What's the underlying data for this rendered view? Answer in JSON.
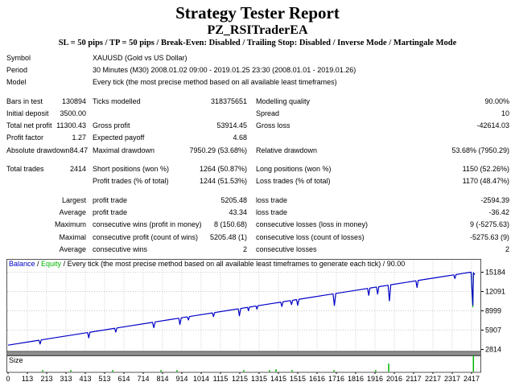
{
  "header": {
    "title": "Strategy Tester Report",
    "ea_name": "PZ_RSITraderEA",
    "settings": "SL = 50 pips / TP = 50 pips / Break-Even: Disabled / Trailing Stop: Disabled / Inverse Mode / Martingale Mode"
  },
  "report": {
    "rows": [
      {
        "cells": [
          "Symbol",
          "",
          "XAUUSD (Gold vs US Dollar)",
          "",
          "",
          ""
        ],
        "wide": true
      },
      {
        "cells": [
          "Period",
          "",
          "30 Minutes (M30) 2008.01.02 09:00 - 2019.01.25 23:30 (2008.01.01 - 2019.01.26)",
          "",
          "",
          ""
        ],
        "wide": true
      },
      {
        "cells": [
          "Model",
          "",
          "Every tick (the most precise method based on all available least timeframes)",
          "",
          "",
          ""
        ],
        "wide": true
      },
      {
        "cells": [
          "Bars in test",
          "130894",
          "Ticks modelled",
          "318375651",
          "Modelling quality",
          "90.00%"
        ],
        "gap": true
      },
      {
        "cells": [
          "Initial deposit",
          "3500.00",
          "",
          "",
          "Spread",
          "10"
        ]
      },
      {
        "cells": [
          "Total net profit",
          "11300.43",
          "Gross profit",
          "53914.45",
          "Gross loss",
          "-42614.03"
        ]
      },
      {
        "cells": [
          "Profit factor",
          "1.27",
          "Expected payoff",
          "4.68",
          "",
          ""
        ]
      },
      {
        "cells": [
          "Absolute drawdown",
          "84.47",
          "Maximal drawdown",
          "7950.29 (53.68%)",
          "Relative drawdown",
          "53.68% (7950.29)"
        ]
      },
      {
        "cells": [
          "Total trades",
          "2414",
          "Short positions (won %)",
          "1264 (50.87%)",
          "Long positions (won %)",
          "1150 (52.26%)"
        ],
        "gap": true
      },
      {
        "cells": [
          "",
          "",
          "Profit trades (% of total)",
          "1244 (51.53%)",
          "Loss trades (% of total)",
          "1170 (48.47%)"
        ]
      },
      {
        "cells": [
          "",
          "Largest",
          "profit trade",
          "5205.48",
          "loss trade",
          "-2594.39"
        ],
        "gap": true
      },
      {
        "cells": [
          "",
          "Average",
          "profit trade",
          "43.34",
          "loss trade",
          "-36.42"
        ]
      },
      {
        "cells": [
          "",
          "Maximum",
          "consecutive wins (profit in money)",
          "8 (150.68)",
          "consecutive losses (loss in money)",
          "9 (-5275.63)"
        ]
      },
      {
        "cells": [
          "",
          "Maximal",
          "consecutive profit (count of wins)",
          "5205.48 (1)",
          "consecutive loss (count of losses)",
          "-5275.63 (9)"
        ]
      },
      {
        "cells": [
          "",
          "Average",
          "consecutive wins",
          "2",
          "consecutive losses",
          "2"
        ]
      }
    ]
  },
  "chart_data": {
    "type": "line",
    "legend": {
      "balance": "Balance",
      "equity": "Equity",
      "separator": " / ",
      "rest": "Every tick (the most precise method based on all available least timeframes to generate each tick) / 90.00"
    },
    "size_label": "Size",
    "y_ticks": [
      "15184",
      "12091",
      "8999",
      "5907",
      "2814"
    ],
    "x_ticks": [
      "0",
      "113",
      "213",
      "313",
      "413",
      "513",
      "614",
      "714",
      "814",
      "914",
      "1014",
      "1115",
      "1215",
      "1315",
      "1415",
      "1515",
      "1616",
      "1716",
      "1816",
      "1916",
      "2016",
      "2117",
      "2217",
      "2317",
      "2417"
    ],
    "x_max": 2417,
    "y_range": [
      2814,
      15184
    ],
    "colors": {
      "balance": "#0000C8",
      "equity": "#00B400",
      "size_bar": "#00B400",
      "grid": "#C8C8C8",
      "border": "#555555",
      "separator_bar": "#909090"
    },
    "balance_points": [
      [
        0,
        3500
      ],
      [
        50,
        3744
      ],
      [
        100,
        3988
      ],
      [
        160,
        4280
      ],
      [
        166,
        3680
      ],
      [
        172,
        4339
      ],
      [
        230,
        4622
      ],
      [
        310,
        5012
      ],
      [
        412,
        5510
      ],
      [
        418,
        4660
      ],
      [
        424,
        5569
      ],
      [
        480,
        5841
      ],
      [
        552,
        6193
      ],
      [
        558,
        5590
      ],
      [
        564,
        6251
      ],
      [
        640,
        6622
      ],
      [
        748,
        7149
      ],
      [
        755,
        6300
      ],
      [
        762,
        7217
      ],
      [
        830,
        7549
      ],
      [
        884,
        7812
      ],
      [
        890,
        6810
      ],
      [
        897,
        7876
      ],
      [
        928,
        8027
      ],
      [
        934,
        7520
      ],
      [
        940,
        8086
      ],
      [
        1010,
        8427
      ],
      [
        1058,
        8661
      ],
      [
        1064,
        8080
      ],
      [
        1070,
        8720
      ],
      [
        1150,
        9110
      ],
      [
        1192,
        9315
      ],
      [
        1198,
        8190
      ],
      [
        1205,
        9378
      ],
      [
        1240,
        9549
      ],
      [
        1245,
        9010
      ],
      [
        1250,
        9598
      ],
      [
        1284,
        9763
      ],
      [
        1289,
        9260
      ],
      [
        1294,
        9812
      ],
      [
        1360,
        10134
      ],
      [
        1412,
        10388
      ],
      [
        1418,
        9690
      ],
      [
        1424,
        10446
      ],
      [
        1462,
        10631
      ],
      [
        1468,
        9990
      ],
      [
        1474,
        10690
      ],
      [
        1494,
        10787
      ],
      [
        1500,
        9880
      ],
      [
        1507,
        10851
      ],
      [
        1570,
        11158
      ],
      [
        1640,
        11500
      ],
      [
        1683,
        11710
      ],
      [
        1690,
        9845
      ],
      [
        1697,
        11778
      ],
      [
        1750,
        12036
      ],
      [
        1810,
        12329
      ],
      [
        1862,
        12582
      ],
      [
        1868,
        11480
      ],
      [
        1874,
        12641
      ],
      [
        1908,
        12807
      ],
      [
        1914,
        11690
      ],
      [
        1920,
        12866
      ],
      [
        1968,
        13100
      ],
      [
        1975,
        10590
      ],
      [
        1982,
        13168
      ],
      [
        2040,
        13451
      ],
      [
        2100,
        13744
      ],
      [
        2112,
        13803
      ],
      [
        2118,
        12740
      ],
      [
        2124,
        13861
      ],
      [
        2190,
        14183
      ],
      [
        2250,
        14475
      ],
      [
        2308,
        14758
      ],
      [
        2314,
        14170
      ],
      [
        2320,
        14817
      ],
      [
        2360,
        15013
      ],
      [
        2392,
        15170
      ],
      [
        2398,
        15184
      ],
      [
        2402,
        12600
      ],
      [
        2407,
        9908
      ],
      [
        2410,
        15113
      ],
      [
        2417,
        14800
      ]
    ],
    "equity_overlay_points": [
      [
        2398,
        15184
      ],
      [
        2402,
        12600
      ],
      [
        2407,
        9560
      ],
      [
        2410,
        15113
      ]
    ],
    "equity_end_tick": [
      [
        2412,
        14800
      ],
      [
        2412,
        15080
      ]
    ],
    "size_bars": [
      [
        179,
        2
      ],
      [
        325,
        2
      ],
      [
        542,
        2
      ],
      [
        792,
        2
      ],
      [
        875,
        2
      ],
      [
        1221,
        2
      ],
      [
        1354,
        2
      ],
      [
        1388,
        3
      ],
      [
        1471,
        2
      ],
      [
        1688,
        2
      ],
      [
        1904,
        2
      ],
      [
        1971,
        10
      ],
      [
        2410,
        20
      ]
    ]
  }
}
